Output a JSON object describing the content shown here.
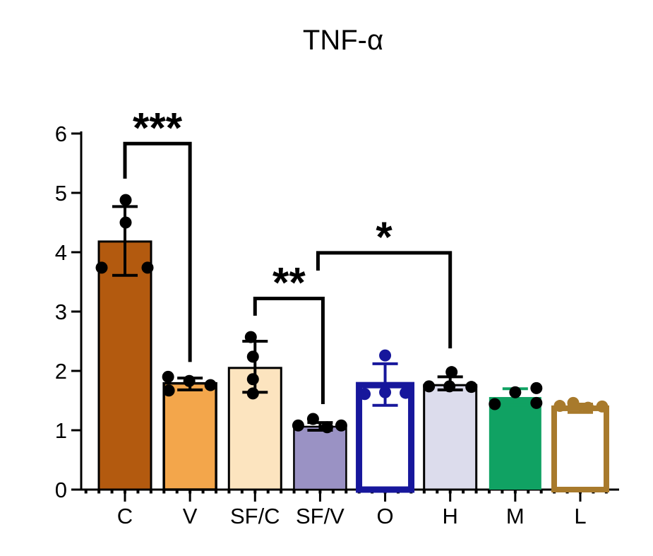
{
  "title": "TNF-α",
  "chart_data": {
    "type": "bar",
    "title": "TNF-α",
    "categories": [
      "C",
      "V",
      "SF/C",
      "SF/V",
      "O",
      "H",
      "M",
      "L"
    ],
    "values": [
      4.18,
      1.79,
      2.05,
      1.06,
      1.76,
      1.76,
      1.56,
      1.37
    ],
    "errors": {
      "low": [
        3.61,
        1.68,
        1.64,
        1.0,
        1.42,
        1.68,
        1.42,
        1.3
      ],
      "high": [
        4.77,
        1.88,
        2.5,
        1.13,
        2.12,
        1.9,
        1.7,
        1.44
      ]
    },
    "points": [
      [
        {
          "v": 4.88,
          "dx": 1
        },
        {
          "v": 4.5,
          "dx": 1
        },
        {
          "v": 3.74,
          "dx": -33
        },
        {
          "v": 3.74,
          "dx": 32
        }
      ],
      [
        {
          "v": 1.9,
          "dx": -31
        },
        {
          "v": 1.83,
          "dx": -1
        },
        {
          "v": 1.76,
          "dx": 29
        },
        {
          "v": 1.67,
          "dx": -30
        }
      ],
      [
        {
          "v": 2.57,
          "dx": -6
        },
        {
          "v": 2.24,
          "dx": -3
        },
        {
          "v": 1.86,
          "dx": -3
        },
        {
          "v": 1.62,
          "dx": -3
        }
      ],
      [
        {
          "v": 1.19,
          "dx": -10
        },
        {
          "v": 1.08,
          "dx": -31
        },
        {
          "v": 1.05,
          "dx": 10
        },
        {
          "v": 1.08,
          "dx": 30
        }
      ],
      [
        {
          "v": 2.26,
          "dx": 0
        },
        {
          "v": 1.64,
          "dx": 0
        },
        {
          "v": 1.61,
          "dx": -29
        },
        {
          "v": 1.63,
          "dx": 29
        }
      ],
      [
        {
          "v": 1.98,
          "dx": 2
        },
        {
          "v": 1.74,
          "dx": -30
        },
        {
          "v": 1.74,
          "dx": -1
        },
        {
          "v": 1.73,
          "dx": 30
        }
      ],
      [
        {
          "v": 1.71,
          "dx": 30
        },
        {
          "v": 1.64,
          "dx": 0
        },
        {
          "v": 1.44,
          "dx": -29
        },
        {
          "v": 1.46,
          "dx": 30
        }
      ],
      [
        {
          "v": 1.46,
          "dx": -10
        },
        {
          "v": 1.41,
          "dx": -29
        },
        {
          "v": 1.38,
          "dx": 11
        },
        {
          "v": 1.4,
          "dx": 31
        }
      ]
    ],
    "series_styles": [
      {
        "fill": "#B35A0F",
        "stroke": "#000000",
        "stroke_width": 3,
        "error_color": "#000000",
        "point_color": "#000000"
      },
      {
        "fill": "#F3A64B",
        "stroke": "#000000",
        "stroke_width": 3.5,
        "error_color": "#000000",
        "point_color": "#000000"
      },
      {
        "fill": "#FCE4BF",
        "stroke": "#000000",
        "stroke_width": 3,
        "error_color": "#000000",
        "point_color": "#000000"
      },
      {
        "fill": "#9A92C4",
        "stroke": "#000000",
        "stroke_width": 2.5,
        "error_color": "#000000",
        "point_color": "#000000"
      },
      {
        "fill": "#FFFFFF",
        "stroke": "#17179C",
        "stroke_width": 9,
        "error_color": "#17179C",
        "point_color": "#17179C"
      },
      {
        "fill": "#DCDCEC",
        "stroke": "#000000",
        "stroke_width": 3,
        "error_color": "#000000",
        "point_color": "#000000"
      },
      {
        "fill": "#10A263",
        "stroke": "#10A263",
        "stroke_width": 0,
        "error_color": "#10A263",
        "point_color": "#000000"
      },
      {
        "fill": "#FFFFFF",
        "stroke": "#A87A2C",
        "stroke_width": 8,
        "error_color": "#A87A2C",
        "point_color": "#A87A2C"
      }
    ],
    "ylim": [
      0,
      6
    ],
    "yticks": [
      0,
      1,
      2,
      3,
      4,
      5,
      6
    ],
    "grid": false,
    "legend": false,
    "significance": [
      {
        "label": "***",
        "group1": "C",
        "group2": "V",
        "i1": 0,
        "i2": 1,
        "dx1": 0,
        "dx2": 0,
        "top": 5.83,
        "leg1_end": 5.24,
        "leg2_end": 2.15
      },
      {
        "label": "**",
        "group1": "SF/C",
        "group2": "SF/V",
        "i1": 2,
        "i2": 3,
        "dx1": 0,
        "dx2": 4,
        "top": 3.22,
        "leg1_end": 2.93,
        "leg2_end": 1.44
      },
      {
        "label": "*",
        "group1": "SF/V",
        "group2": "H",
        "i1": 3,
        "i2": 5,
        "dx1": -3,
        "dx2": 0,
        "top": 3.99,
        "leg1_end": 3.69,
        "leg2_end": 2.38
      }
    ]
  }
}
